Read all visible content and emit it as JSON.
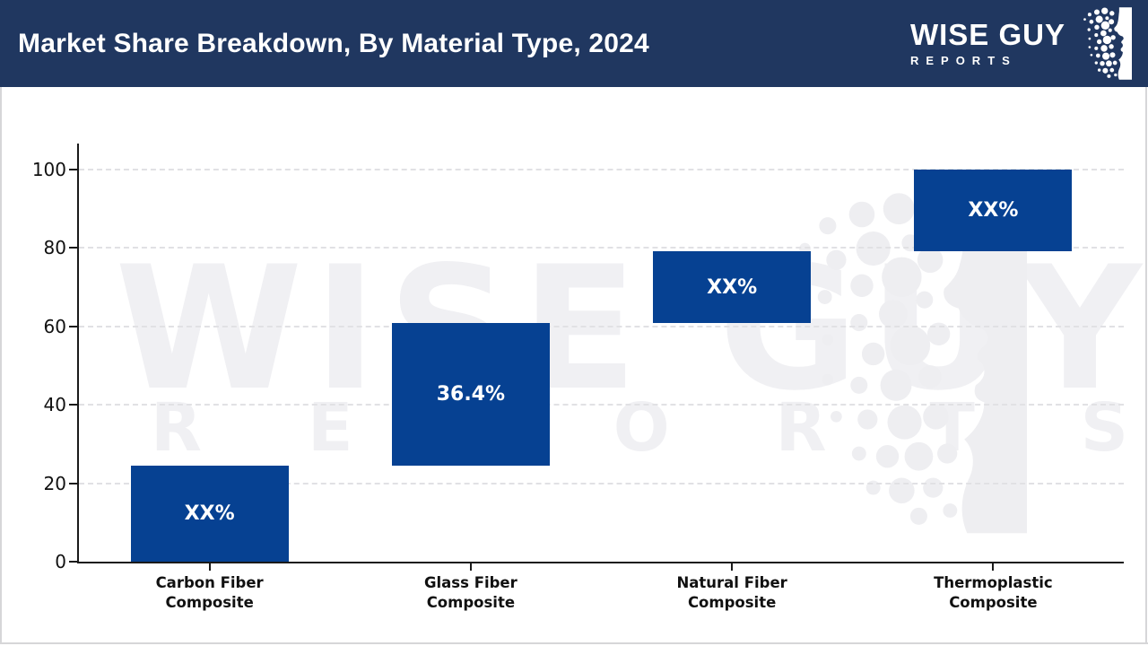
{
  "header": {
    "title": "Market Share Breakdown, By Material Type, 2024",
    "brand_name": "WISE GUY",
    "brand_subtitle": "REPORTS"
  },
  "watermark": {
    "brand_name": "WISE GUY",
    "brand_subtitle": "REPORTS"
  },
  "chart_data": {
    "type": "bar",
    "variant": "waterfall",
    "title": "Market Share Breakdown, By Material Type, 2024",
    "xlabel": "",
    "ylabel": "",
    "categories": [
      "Carbon Fiber Composite",
      "Glass Fiber Composite",
      "Natural Fiber Composite",
      "Thermoplastic Composite"
    ],
    "bars": [
      {
        "category": "Carbon Fiber Composite",
        "start": 0,
        "end": 24.4,
        "label": "XX%"
      },
      {
        "category": "Glass Fiber Composite",
        "start": 24.4,
        "end": 60.8,
        "label": "36.4%"
      },
      {
        "category": "Natural Fiber Composite",
        "start": 60.8,
        "end": 79.2,
        "label": "XX%"
      },
      {
        "category": "Thermoplastic Composite",
        "start": 79.2,
        "end": 100,
        "label": "XX%"
      }
    ],
    "ylim": [
      0,
      106.6
    ],
    "yticks": [
      0,
      20,
      40,
      60,
      80,
      100
    ],
    "grid": "horizontal-dashed",
    "legend": "none",
    "colors": {
      "bar": "#064192",
      "bar_label": "#FFFFFF",
      "grid": "#E1E1E4",
      "axis": "#1A1A1A",
      "tick_label": "#111111",
      "header_bg": "#203760",
      "header_text": "#FFFFFF",
      "watermark": "#F0F0F3"
    }
  }
}
